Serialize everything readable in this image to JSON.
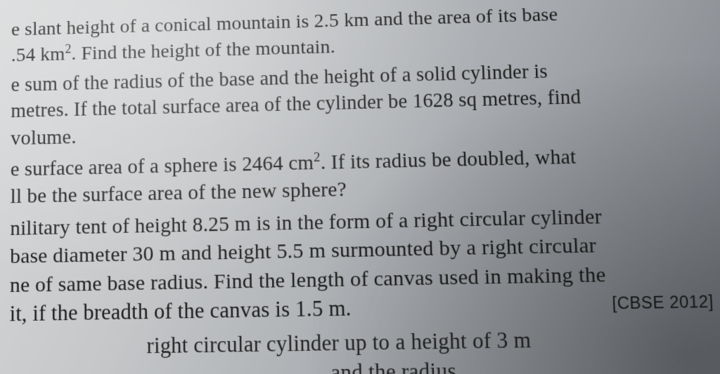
{
  "paragraphs": [
    {
      "lines": [
        {
          "cls": "sz-a",
          "html": "e slant height of a conical mountain is 2.5 km and the area of its base"
        },
        {
          "cls": "sz-a",
          "html": ".54 km<sup>2</sup>. Find the height of the mountain."
        }
      ]
    },
    {
      "lines": [
        {
          "cls": "sz-b",
          "html": "e sum of the radius of the base and the height of a solid cylinder is"
        },
        {
          "cls": "sz-b",
          "html": "metres. If the total surface area of the cylinder be 1628 sq metres, find"
        },
        {
          "cls": "sz-c",
          "html": "volume."
        }
      ]
    },
    {
      "lines": [
        {
          "cls": "sz-c",
          "html": "e surface area of a sphere is 2464 cm<sup>2</sup>. If its radius be doubled, what"
        },
        {
          "cls": "sz-d",
          "html": "ll be the surface area of the new sphere?"
        }
      ]
    },
    {
      "lines": [
        {
          "cls": "sz-d",
          "html": "nilitary tent of height 8.25 m is in the form of a right circular cylinder"
        },
        {
          "cls": "sz-e",
          "html": "base diameter 30 m and height 5.5 m surmounted by a right circular"
        },
        {
          "cls": "sz-e",
          "html": "ne of same base radius. Find the length of canvas used in making the"
        },
        {
          "cls": "sz-e",
          "html": "<span class=\"cbse\">[CBSE 2012]</span>"
        },
        {
          "cls": "sz-f",
          "html": "it, if the breadth of the canvas is 1.5 m."
        }
      ]
    },
    {
      "lines": [
        {
          "cls": "sz-f txfade-r",
          "html": "&nbsp;&nbsp;&nbsp;&nbsp;&nbsp;&nbsp;&nbsp;&nbsp;&nbsp;&nbsp;&nbsp;&nbsp;&nbsp;&nbsp;&nbsp;&nbsp;&nbsp;&nbsp;&nbsp;&nbsp;&nbsp;&nbsp;&nbsp;&nbsp;&nbsp;right circular cylinder up to a height of 3 m"
        },
        {
          "cls": "sz-f txfade-r",
          "html": "&nbsp;&nbsp;&nbsp;&nbsp;&nbsp;&nbsp;&nbsp;&nbsp;&nbsp;&nbsp;&nbsp;&nbsp;&nbsp;&nbsp;&nbsp;&nbsp;&nbsp;&nbsp;&nbsp;&nbsp;&nbsp;&nbsp;&nbsp;&nbsp;&nbsp;&nbsp;&nbsp;&nbsp;&nbsp;&nbsp;&nbsp;&nbsp;&nbsp;&nbsp;&nbsp;&nbsp;&nbsp;&nbsp;&nbsp;&nbsp;&nbsp;&nbsp;&nbsp;&nbsp;&nbsp;&nbsp;&nbsp;&nbsp;&nbsp;&nbsp;&nbsp;&nbsp;&nbsp;&nbsp;&nbsp;&nbsp;&nbsp;&nbsp;and the radius"
        }
      ]
    }
  ]
}
